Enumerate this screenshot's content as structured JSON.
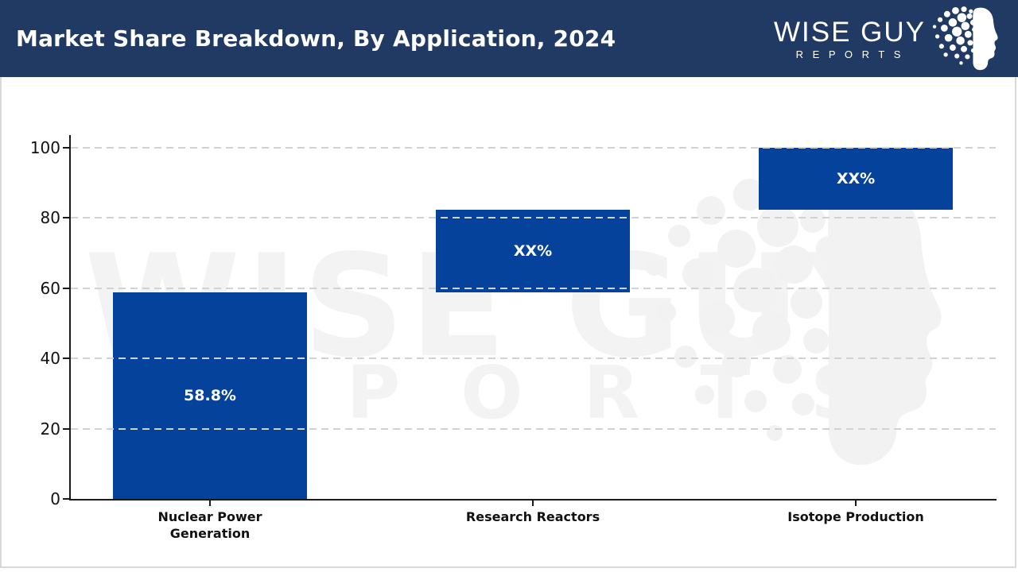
{
  "header": {
    "title": "Market Share Breakdown, By Application, 2024",
    "logo": {
      "line1": "WISE GUY",
      "line2": "R E P O R T S"
    }
  },
  "watermark": {
    "line1": "WISE GUY",
    "line2": "R E P O R T S"
  },
  "chart_data": {
    "type": "bar",
    "subtype": "waterfall",
    "title": "Market Share Breakdown, By Application, 2024",
    "categories": [
      "Nuclear Power\nGeneration",
      "Research Reactors",
      "Isotope Production"
    ],
    "segments": [
      {
        "category": "Nuclear Power\nGeneration",
        "start": 0,
        "end": 58.8,
        "label": "58.8%"
      },
      {
        "category": "Research Reactors",
        "start": 58.8,
        "end": 82.4,
        "label": "XX%"
      },
      {
        "category": "Isotope Production",
        "start": 82.4,
        "end": 100,
        "label": "XX%"
      }
    ],
    "ylim": [
      0,
      100
    ],
    "yticks": [
      0,
      20,
      40,
      60,
      80,
      100
    ],
    "grid": "horizontal-dashed",
    "legend": "none",
    "bar_color": "#04429c",
    "bar_label_color": "#ffffff",
    "grid_color": "#d2d2d2",
    "axis_color": "#1a1a1a",
    "header_bg": "#213a64"
  }
}
